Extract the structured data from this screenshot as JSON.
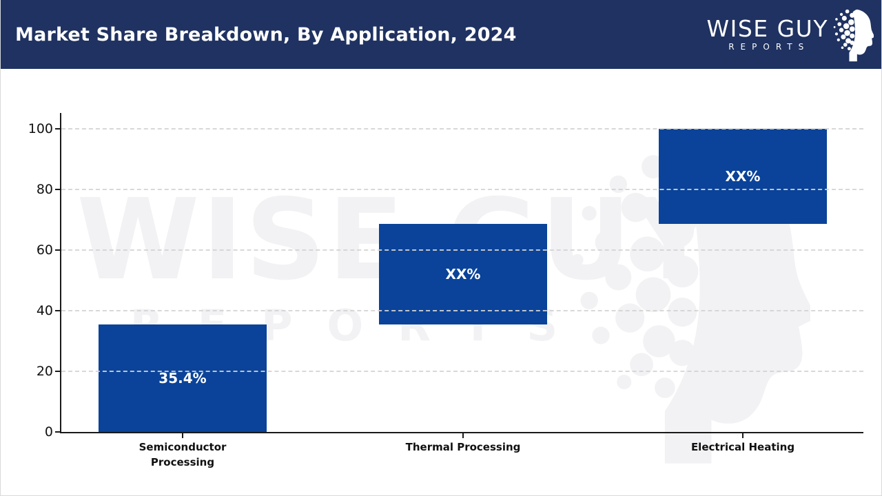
{
  "header": {
    "title": "Market Share Breakdown, By Application, 2024",
    "logo": {
      "wordmark": "WISE GUY",
      "subtext": "REPORTS"
    }
  },
  "watermark": {
    "line1": "WISE GUY",
    "line2": "REPORTS"
  },
  "chart_data": {
    "type": "bar",
    "variant": "floating_segment_bars",
    "title": "Market Share Breakdown, By Application, 2024",
    "categories": [
      "Semiconductor Processing",
      "Thermal Processing",
      "Electrical Heating"
    ],
    "bars": [
      {
        "category": "Semiconductor Processing",
        "start": 0,
        "end": 35.4,
        "label": "35.4%"
      },
      {
        "category": "Thermal Processing",
        "start": 35.4,
        "end": 68.6,
        "label": "XX%"
      },
      {
        "category": "Electrical Heating",
        "start": 68.6,
        "end": 100,
        "label": "XX%"
      }
    ],
    "xlabel": "",
    "ylabel": "",
    "ylim": [
      0,
      100
    ],
    "yticks": [
      0,
      20,
      40,
      60,
      80,
      100
    ],
    "grid": "horizontal-dashed",
    "legend": "none",
    "colors": {
      "bar": "#0a4399",
      "bar_label": "#ffffff",
      "axis": "#1a1a1a",
      "tick_label": "#111111",
      "gridline": "#d4d4d4",
      "header_bg": "#1f3261",
      "header_text": "#ffffff",
      "watermark": "#f2f2f4"
    }
  }
}
